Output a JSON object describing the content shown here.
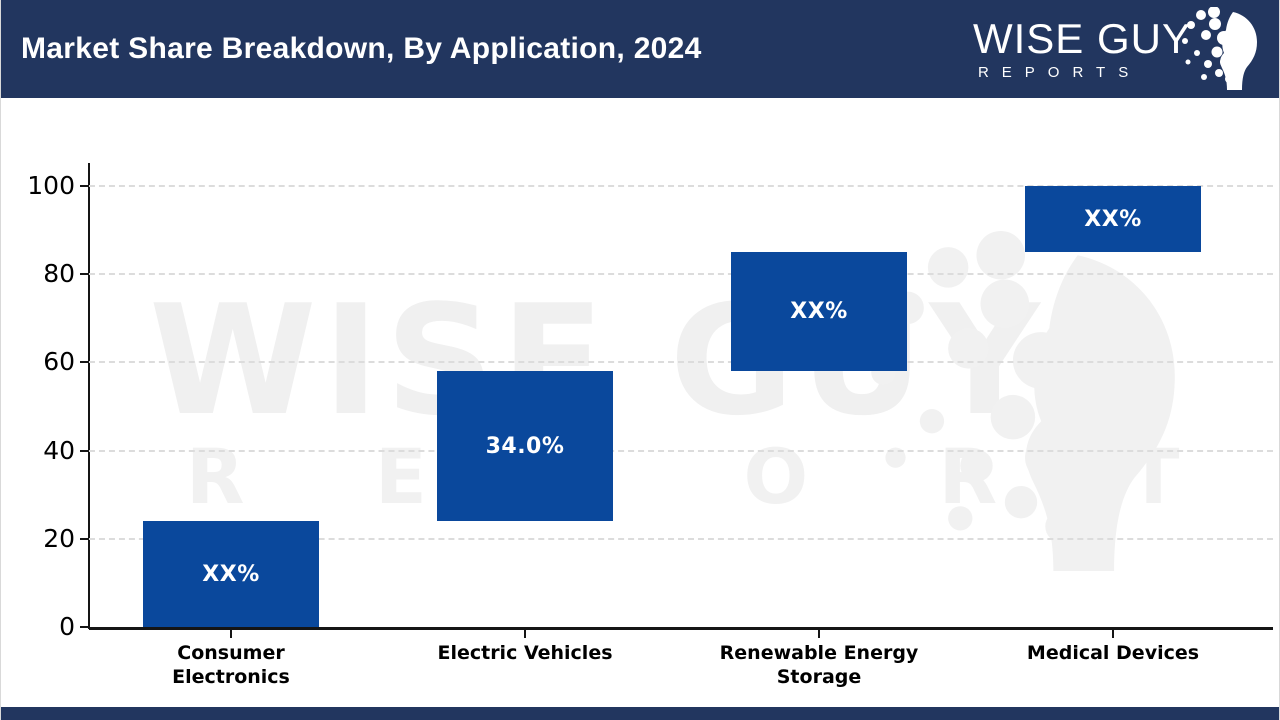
{
  "header": {
    "title": "Market Share Breakdown, By Application, 2024"
  },
  "brand": {
    "name": "WISE GUY",
    "subname": "REPORTS",
    "face_icon": "dotted-head-profile"
  },
  "watermark": {
    "line1": "WISE GUY",
    "line2": "R E P O R T S",
    "face_icon": "dotted-head-profile"
  },
  "colors": {
    "header_navy": "#22365f",
    "footer_navy": "#22365f",
    "bar_blue": "#0a489c",
    "gridline": "#dcdcdc",
    "axis": "#151515",
    "watermark": "#f0f0f0"
  },
  "chart_data": {
    "type": "bar",
    "subtype": "floating-waterfall",
    "title": "Market Share Breakdown, By Application, 2024",
    "categories": [
      "Consumer Electronics",
      "Electric Vehicles",
      "Renewable Energy Storage",
      "Medical Devices"
    ],
    "segments": [
      {
        "start": 0,
        "end": 24
      },
      {
        "start": 24,
        "end": 58
      },
      {
        "start": 58,
        "end": 85
      },
      {
        "start": 85,
        "end": 100
      }
    ],
    "values": [
      24,
      34,
      27,
      15
    ],
    "bar_labels": [
      "XX%",
      "34.0%",
      "XX%",
      "XX%"
    ],
    "xlabel": "",
    "ylabel": "",
    "ylim": [
      0,
      100
    ],
    "yticks": [
      0,
      20,
      40,
      60,
      80,
      100
    ],
    "grid": "horizontal dashed",
    "legend": "none",
    "bar_color": "#0a489c"
  }
}
